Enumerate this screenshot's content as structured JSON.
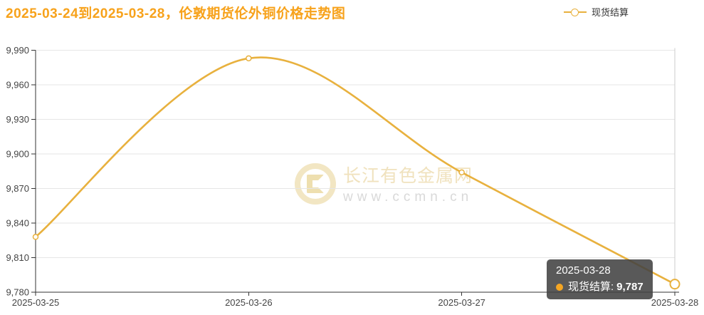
{
  "header": {
    "title": "2025-03-24到2025-03-28，伦敦期货伦外铜价格走势图",
    "title_color": "#F7A21B"
  },
  "legend": {
    "label": "现货结算",
    "marker_color": "#E8B13E"
  },
  "chart_data": {
    "type": "line",
    "smooth": true,
    "categories": [
      "2025-03-25",
      "2025-03-26",
      "2025-03-27",
      "2025-03-28"
    ],
    "series": [
      {
        "name": "现货结算",
        "values": [
          9828,
          9983,
          9884,
          9787
        ],
        "color": "#E8B13E"
      }
    ],
    "ylim": [
      9780,
      9990
    ],
    "ytick_interval": 30,
    "ytick_labels": [
      "9,780",
      "9,810",
      "9,840",
      "9,870",
      "9,900",
      "9,930",
      "9,960",
      "9,990"
    ],
    "grid": "horizontal",
    "grid_color": "#E6E6E6",
    "axis_color": "#333333",
    "label_color": "#444444",
    "axis_pointer_color": "#CCCCCC",
    "legend_position": "top-right",
    "hovered_index": 3,
    "hovered_category": "2025-03-28"
  },
  "tooltip": {
    "date": "2025-03-28",
    "series_label": "现货结算:",
    "value": "9,787",
    "dot_color": "#F5A623"
  },
  "watermark": {
    "site_name": "长江有色金属网",
    "site_url": "www.ccmn.cn"
  }
}
